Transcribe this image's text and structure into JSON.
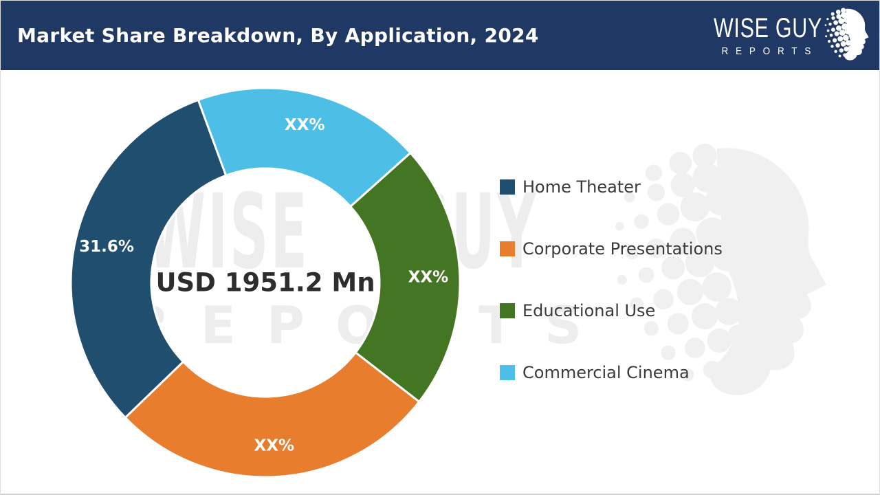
{
  "header": {
    "title": "Market Share Breakdown, By Application, 2024",
    "background_color": "#203864",
    "logo": {
      "line1": "WISE GUY",
      "line2": "REPORTS"
    }
  },
  "chart_data": {
    "type": "pie",
    "subtype": "donut",
    "title": "Market Share Breakdown, By Application, 2024",
    "center_label": "USD 1951.2 Mn",
    "start_angle_deg": 110.2,
    "direction": "counterclockwise",
    "legend_position": "right",
    "segments": [
      {
        "label": "Home Theater",
        "value_pct": 31.6,
        "display_label": "31.6%",
        "color": "#1f4e6e"
      },
      {
        "label": "Corporate Presentations",
        "value_pct": 27.3,
        "display_label": "XX%",
        "color": "#e87d2e"
      },
      {
        "label": "Educational Use",
        "value_pct": 22.1,
        "display_label": "XX%",
        "color": "#447522"
      },
      {
        "label": "Commercial Cinema",
        "value_pct": 19.0,
        "display_label": "XX%",
        "color": "#4dbfe6"
      }
    ]
  },
  "watermark": {
    "line1": "WISE GUY",
    "line2": "REPORTS"
  }
}
